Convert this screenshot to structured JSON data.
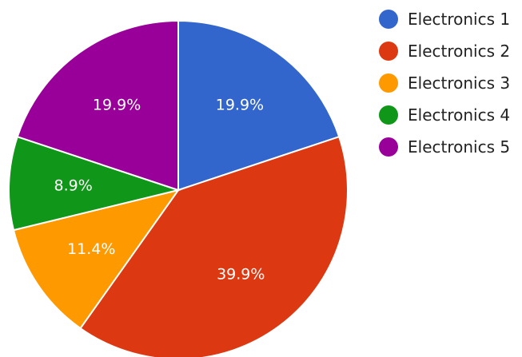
{
  "chart_data": {
    "type": "pie",
    "title": "",
    "categories": [
      "Electronics 1",
      "Electronics 2",
      "Electronics 3",
      "Electronics 4",
      "Electronics 5"
    ],
    "values": [
      19.9,
      39.9,
      11.4,
      8.9,
      19.9
    ],
    "labels": [
      "19.9%",
      "39.9%",
      "11.4%",
      "8.9%",
      "19.9%"
    ],
    "colors": [
      "#3366cc",
      "#dc3912",
      "#ff9900",
      "#109618",
      "#990099"
    ],
    "legend": "right"
  }
}
